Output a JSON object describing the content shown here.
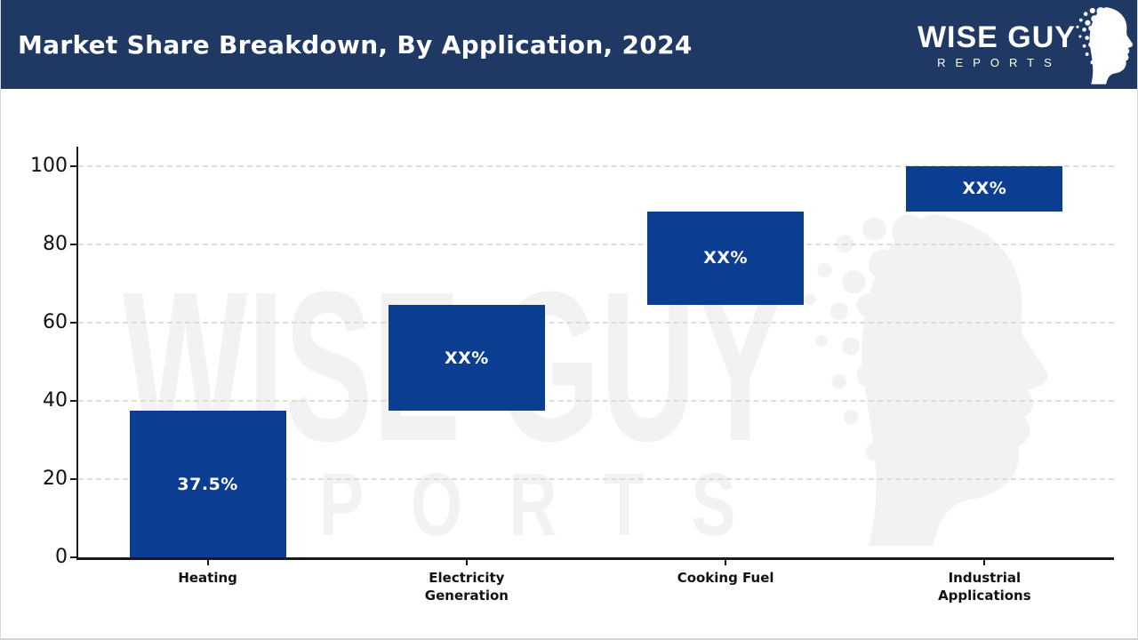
{
  "header": {
    "title": "Market Share Breakdown, By Application, 2024",
    "bg_color": "#1F3864"
  },
  "logo": {
    "line1": "WISE GUY",
    "line2": "REPORTS"
  },
  "watermark": {
    "line1": "WISE GUY",
    "line2": "REPORTS"
  },
  "chart_data": {
    "type": "bar",
    "subtype": "waterfall",
    "title": "Market Share Breakdown, By Application, 2024",
    "categories": [
      "Heating",
      "Electricity Generation",
      "Cooking Fuel",
      "Industrial Applications"
    ],
    "bars": [
      {
        "category": "Heating",
        "category_lines": [
          "Heating"
        ],
        "start": 0,
        "end": 37.5,
        "label": "37.5%"
      },
      {
        "category": "Electricity Generation",
        "category_lines": [
          "Electricity",
          "Generation"
        ],
        "start": 37.5,
        "end": 64.5,
        "label": "XX%"
      },
      {
        "category": "Cooking Fuel",
        "category_lines": [
          "Cooking Fuel"
        ],
        "start": 64.5,
        "end": 88.5,
        "label": "XX%"
      },
      {
        "category": "Industrial Applications",
        "category_lines": [
          "Industrial",
          "Applications"
        ],
        "start": 88.5,
        "end": 100,
        "label": "XX%"
      }
    ],
    "ylim": [
      0,
      100
    ],
    "yticks": [
      0,
      20,
      40,
      60,
      80,
      100
    ],
    "xlabel": "",
    "ylabel": "",
    "grid": "horizontal-dashed",
    "legend": "none",
    "bar_color": "#0b3d91",
    "bar_label_color": "#ffffff"
  }
}
